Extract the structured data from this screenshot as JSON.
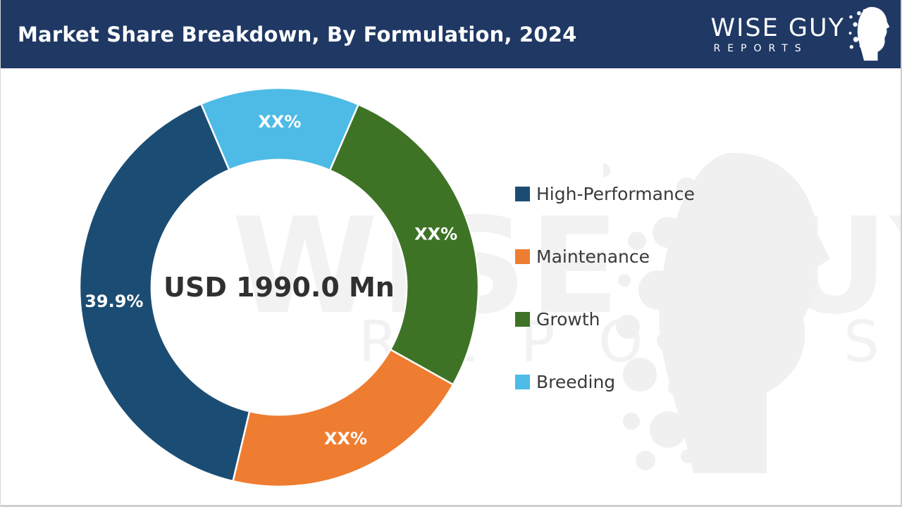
{
  "header": {
    "title": "Market Share Breakdown, By Formulation, 2024",
    "logo": {
      "line1": "WISE GUY",
      "line2": "REPORTS"
    }
  },
  "chart_data": {
    "type": "pie",
    "donut": true,
    "title": "Market Share Breakdown, By Formulation, 2024",
    "center_label": "USD 1990.0 Mn",
    "start_angle_deg": 113,
    "direction": "counterclockwise",
    "inner_radius_ratio": 0.64,
    "legend_position": "right",
    "segments": [
      {
        "name": "High-Performance",
        "color": "#1B4D74",
        "value_pct": 39.9,
        "display_label": "39.9%"
      },
      {
        "name": "Maintenance",
        "color": "#EE7D31",
        "value_pct": 20.6,
        "display_label": "XX%"
      },
      {
        "name": "Growth",
        "color": "#3E7326",
        "value_pct": 26.6,
        "display_label": "XX%"
      },
      {
        "name": "Breeding",
        "color": "#4DBBE6",
        "value_pct": 12.9,
        "display_label": "XX%"
      }
    ]
  },
  "watermark": {
    "line1": "WISE GUY",
    "line2": "REPORTS"
  },
  "colors": {
    "header_bg": "#1F3864",
    "title_text": "#FFFFFF",
    "center_text": "#303030",
    "legend_text": "#3A3A3A",
    "segment_label_text": "#FFFFFF",
    "watermark": "#F2F2F2",
    "frame_border": "#CFCFCF"
  }
}
